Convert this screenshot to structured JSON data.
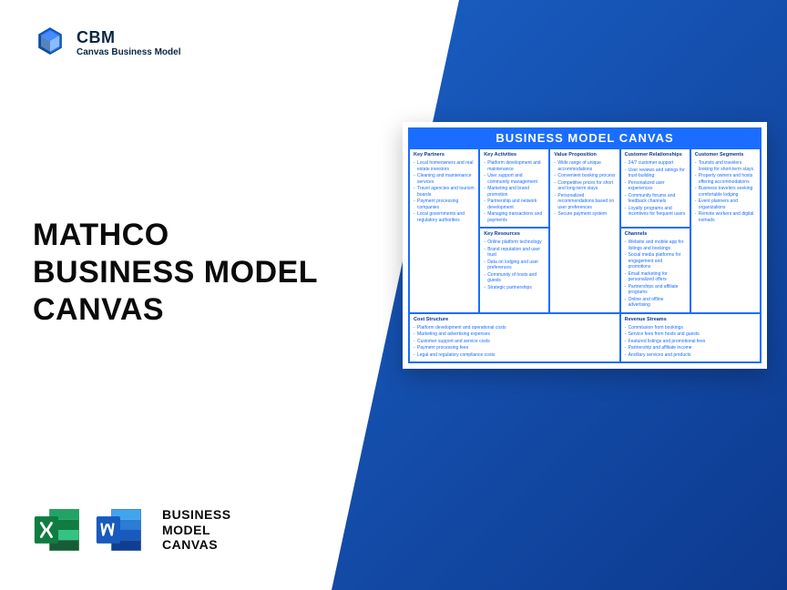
{
  "logo": {
    "abbrev": "CBM",
    "subtitle": "Canvas Business Model"
  },
  "title": {
    "line1": "MATHCO",
    "line2": "BUSINESS MODEL",
    "line3": "CANVAS"
  },
  "formats": {
    "label_line1": "BUSINESS",
    "label_line2": "MODEL",
    "label_line3": "CANVAS"
  },
  "canvas": {
    "header": "BUSINESS MODEL CANVAS",
    "colors": {
      "accent": "#1a6dff",
      "text": "#1a6dff",
      "title": "#0d3a8f"
    },
    "cells": {
      "kp": {
        "title": "Key Partners",
        "items": [
          "Local homeowners and real estate investors",
          "Cleaning and maintenance services",
          "Travel agencies and tourism boards",
          "Payment processing companies",
          "Local governments and regulatory authorities"
        ]
      },
      "ka": {
        "title": "Key Activities",
        "items": [
          "Platform development and maintenance",
          "User support and community management",
          "Marketing and brand promotion",
          "Partnership and network development",
          "Managing transactions and payments"
        ]
      },
      "kr": {
        "title": "Key Resources",
        "items": [
          "Online platform technology",
          "Brand reputation and user trust",
          "Data on lodging and user preferences",
          "Community of hosts and guests",
          "Strategic partnerships"
        ]
      },
      "vp": {
        "title": "Value Proposition",
        "items": [
          "Wide range of unique accommodations",
          "Convenient booking process",
          "Competitive prices for short and long-term stays",
          "Personalized recommendations based on user preferences",
          "Secure payment system"
        ]
      },
      "cr": {
        "title": "Customer Relationships",
        "items": [
          "24/7 customer support",
          "User reviews and ratings for trust-building",
          "Personalized user experiences",
          "Community forums and feedback channels",
          "Loyalty programs and incentives for frequent users"
        ]
      },
      "ch": {
        "title": "Channels",
        "items": [
          "Website and mobile app for listings and bookings",
          "Social media platforms for engagement and promotions",
          "Email marketing for personalized offers",
          "Partnerships and affiliate programs",
          "Online and offline advertising"
        ]
      },
      "cs": {
        "title": "Customer Segments",
        "items": [
          "Tourists and travelers looking for short-term stays",
          "Property owners and hosts offering accommodations",
          "Business travelers seeking comfortable lodging",
          "Event planners and organizations",
          "Remote workers and digital nomads"
        ]
      },
      "cost": {
        "title": "Cost Structure",
        "items": [
          "Platform development and operational costs",
          "Marketing and advertising expenses",
          "Customer support and service costs",
          "Payment processing fees",
          "Legal and regulatory compliance costs"
        ]
      },
      "rev": {
        "title": "Revenue Streams",
        "items": [
          "Commission from bookings",
          "Service fees from hosts and guests",
          "Featured listings and promotional fees",
          "Partnership and affiliate income",
          "Ancillary services and products"
        ]
      }
    }
  }
}
